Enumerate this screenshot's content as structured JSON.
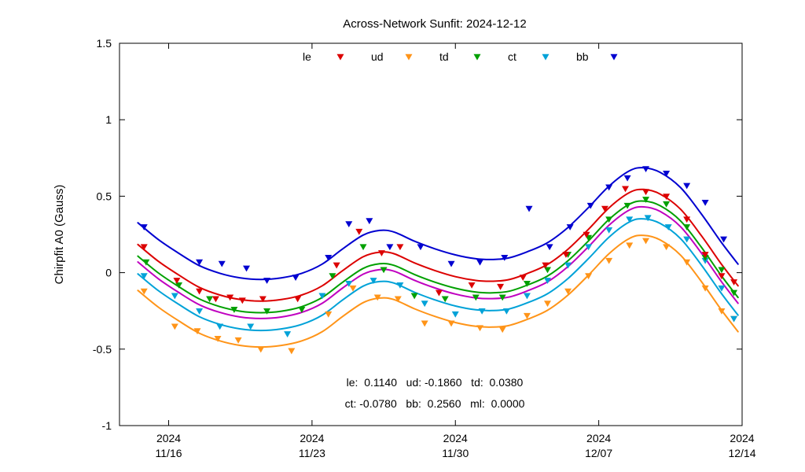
{
  "chart_data": {
    "type": "line",
    "title": "Across-Network Sunfit: 2024-12-12",
    "ylabel": "Chirpfit A0 (Gauss)",
    "legend_position": "top-center-inside",
    "grid": false,
    "x_axis": {
      "range_days": [
        -2.4,
        28
      ],
      "ticks_days": [
        0,
        7,
        14,
        21,
        28
      ],
      "tick_labels_year": [
        "2024",
        "2024",
        "2024",
        "2024",
        "2024"
      ],
      "tick_labels_date": [
        "11/16",
        "11/23",
        "11/30",
        "12/07",
        "12/14"
      ]
    },
    "y_axis": {
      "range": [
        -1,
        1.5
      ],
      "ticks": [
        -1,
        -0.5,
        0,
        0.5,
        1,
        1.5
      ],
      "tick_labels": [
        "-1",
        "-0.5",
        "0",
        "0.5",
        "1",
        "1.5"
      ]
    },
    "base_curve": {
      "days": [
        -1.5,
        -0.5,
        0.5,
        1.5,
        2.5,
        3.5,
        4.5,
        5.5,
        6.5,
        7.5,
        8.5,
        9.5,
        10.3,
        11.0,
        12.0,
        13.0,
        14.0,
        15.0,
        15.8,
        16.6,
        17.5,
        18.5,
        19.5,
        20.5,
        21.5,
        22.5,
        23.2,
        24.0,
        25.0,
        26.0,
        27.0,
        27.8
      ],
      "values": [
        0.07,
        -0.04,
        -0.13,
        -0.21,
        -0.26,
        -0.29,
        -0.3,
        -0.29,
        -0.26,
        -0.2,
        -0.1,
        -0.01,
        0.02,
        0.01,
        -0.05,
        -0.1,
        -0.14,
        -0.165,
        -0.17,
        -0.16,
        -0.12,
        -0.06,
        0.04,
        0.17,
        0.31,
        0.41,
        0.43,
        0.4,
        0.3,
        0.13,
        -0.06,
        -0.2
      ]
    },
    "series": [
      {
        "name": "ud",
        "color": "#ff9418",
        "offset": -0.186,
        "in_legend": true,
        "scatter": [
          [
            -1.2,
            -0.12
          ],
          [
            0.3,
            -0.35
          ],
          [
            1.4,
            -0.38
          ],
          [
            2.4,
            -0.43
          ],
          [
            3.4,
            -0.44
          ],
          [
            4.5,
            -0.5
          ],
          [
            6.0,
            -0.51
          ],
          [
            7.8,
            -0.27
          ],
          [
            9.0,
            -0.1
          ],
          [
            10.2,
            -0.16
          ],
          [
            11.2,
            -0.17
          ],
          [
            12.5,
            -0.33
          ],
          [
            13.8,
            -0.33
          ],
          [
            15.2,
            -0.36
          ],
          [
            16.3,
            -0.37
          ],
          [
            17.5,
            -0.28
          ],
          [
            18.5,
            -0.2
          ],
          [
            19.5,
            -0.12
          ],
          [
            20.5,
            -0.02
          ],
          [
            21.5,
            0.08
          ],
          [
            22.5,
            0.18
          ],
          [
            23.3,
            0.21
          ],
          [
            24.3,
            0.17
          ],
          [
            25.3,
            0.07
          ],
          [
            26.2,
            -0.1
          ],
          [
            27.0,
            -0.25
          ],
          [
            27.6,
            -0.3
          ]
        ]
      },
      {
        "name": "ct",
        "color": "#00a2d8",
        "offset": -0.078,
        "in_legend": true,
        "scatter": [
          [
            -1.2,
            -0.02
          ],
          [
            0.3,
            -0.15
          ],
          [
            1.5,
            -0.25
          ],
          [
            2.5,
            -0.35
          ],
          [
            4.0,
            -0.35
          ],
          [
            5.8,
            -0.4
          ],
          [
            7.5,
            -0.15
          ],
          [
            8.8,
            -0.07
          ],
          [
            10.0,
            -0.05
          ],
          [
            11.3,
            -0.08
          ],
          [
            12.5,
            -0.2
          ],
          [
            14.0,
            -0.27
          ],
          [
            15.3,
            -0.25
          ],
          [
            16.5,
            -0.25
          ],
          [
            17.5,
            -0.15
          ],
          [
            18.5,
            -0.05
          ],
          [
            19.5,
            0.05
          ],
          [
            20.5,
            0.17
          ],
          [
            21.5,
            0.28
          ],
          [
            22.5,
            0.35
          ],
          [
            23.4,
            0.36
          ],
          [
            24.4,
            0.3
          ],
          [
            25.3,
            0.22
          ],
          [
            26.2,
            0.08
          ],
          [
            27.0,
            -0.1
          ],
          [
            27.6,
            -0.3
          ]
        ]
      },
      {
        "name": "ml",
        "color": "#c000c0",
        "offset": 0.0,
        "in_legend": false,
        "scatter": []
      },
      {
        "name": "td",
        "color": "#00a000",
        "offset": 0.038,
        "in_legend": true,
        "scatter": [
          [
            -1.1,
            0.07
          ],
          [
            0.5,
            -0.08
          ],
          [
            2.0,
            -0.17
          ],
          [
            3.2,
            -0.24
          ],
          [
            4.8,
            -0.25
          ],
          [
            6.5,
            -0.24
          ],
          [
            8.0,
            -0.02
          ],
          [
            9.5,
            0.17
          ],
          [
            10.5,
            0.02
          ],
          [
            12.0,
            -0.15
          ],
          [
            13.5,
            -0.17
          ],
          [
            15.0,
            -0.16
          ],
          [
            16.3,
            -0.16
          ],
          [
            17.5,
            -0.07
          ],
          [
            18.5,
            0.02
          ],
          [
            19.5,
            0.12
          ],
          [
            20.5,
            0.23
          ],
          [
            21.5,
            0.35
          ],
          [
            22.4,
            0.44
          ],
          [
            23.3,
            0.48
          ],
          [
            24.3,
            0.45
          ],
          [
            25.3,
            0.3
          ],
          [
            26.2,
            0.1
          ],
          [
            27.0,
            0.02
          ],
          [
            27.6,
            -0.13
          ]
        ]
      },
      {
        "name": "le",
        "color": "#dc0000",
        "offset": 0.114,
        "in_legend": true,
        "scatter": [
          [
            -1.2,
            0.17
          ],
          [
            0.4,
            -0.05
          ],
          [
            1.5,
            -0.12
          ],
          [
            2.3,
            -0.17
          ],
          [
            3.0,
            -0.16
          ],
          [
            3.6,
            -0.18
          ],
          [
            4.6,
            -0.17
          ],
          [
            6.3,
            -0.17
          ],
          [
            8.2,
            0.05
          ],
          [
            9.3,
            0.27
          ],
          [
            10.4,
            0.13
          ],
          [
            11.3,
            0.17
          ],
          [
            13.2,
            -0.13
          ],
          [
            14.8,
            -0.08
          ],
          [
            16.2,
            -0.09
          ],
          [
            17.3,
            -0.03
          ],
          [
            18.4,
            0.05
          ],
          [
            19.4,
            0.12
          ],
          [
            20.4,
            0.25
          ],
          [
            21.3,
            0.42
          ],
          [
            22.3,
            0.55
          ],
          [
            23.3,
            0.53
          ],
          [
            24.3,
            0.5
          ],
          [
            25.3,
            0.35
          ],
          [
            26.2,
            0.12
          ],
          [
            27.0,
            -0.02
          ],
          [
            27.6,
            -0.06
          ]
        ]
      },
      {
        "name": "bb",
        "color": "#0000d0",
        "offset": 0.256,
        "in_legend": true,
        "scatter": [
          [
            -1.2,
            0.3
          ],
          [
            1.5,
            0.07
          ],
          [
            2.6,
            0.06
          ],
          [
            3.8,
            0.03
          ],
          [
            4.8,
            -0.05
          ],
          [
            6.2,
            -0.03
          ],
          [
            7.8,
            0.1
          ],
          [
            8.8,
            0.32
          ],
          [
            9.8,
            0.34
          ],
          [
            10.8,
            0.17
          ],
          [
            12.3,
            0.17
          ],
          [
            13.8,
            0.06
          ],
          [
            15.2,
            0.07
          ],
          [
            16.4,
            0.1
          ],
          [
            17.6,
            0.42
          ],
          [
            18.6,
            0.17
          ],
          [
            19.6,
            0.3
          ],
          [
            20.6,
            0.44
          ],
          [
            21.5,
            0.56
          ],
          [
            22.4,
            0.62
          ],
          [
            23.3,
            0.68
          ],
          [
            24.3,
            0.65
          ],
          [
            25.3,
            0.57
          ],
          [
            26.2,
            0.46
          ],
          [
            27.1,
            0.22
          ]
        ]
      }
    ],
    "legend_order": [
      "le",
      "ud",
      "td",
      "ct",
      "bb"
    ],
    "fit_values": {
      "le": "0.1140",
      "ud": "-0.1860",
      "td": "0.0380",
      "ct": "-0.0780",
      "bb": "0.2560",
      "ml": "0.0000"
    },
    "annotation_line1": "le:  0.1140   ud: -0.1860   td:  0.0380",
    "annotation_line2": "ct: -0.0780   bb:  0.2560   ml:  0.0000"
  }
}
